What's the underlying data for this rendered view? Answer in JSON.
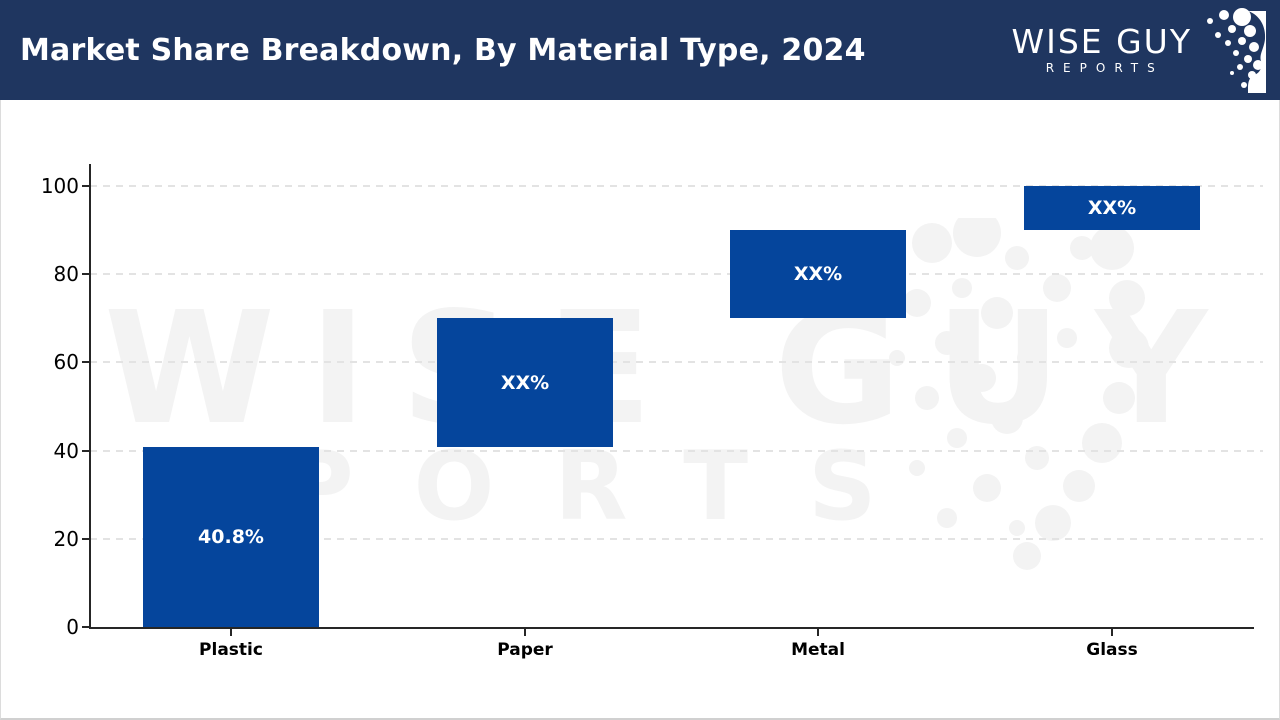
{
  "header": {
    "title": "Market Share Breakdown, By Material Type, 2024",
    "logo": {
      "line1": "WISE GUY",
      "line2": "REPORTS"
    }
  },
  "watermark": {
    "line1": "WISE GUY",
    "line2": "PORTS"
  },
  "chart_data": {
    "type": "bar",
    "subtype": "waterfall",
    "title": "Market Share Breakdown, By Material Type, 2024",
    "xlabel": "",
    "ylabel": "",
    "categories": [
      "Plastic",
      "Paper",
      "Metal",
      "Glass"
    ],
    "segments": [
      {
        "category": "Plastic",
        "start": 0,
        "end": 40.8,
        "label": "40.8%"
      },
      {
        "category": "Paper",
        "start": 40.8,
        "end": 70,
        "label": "XX%"
      },
      {
        "category": "Metal",
        "start": 70,
        "end": 90,
        "label": "XX%"
      },
      {
        "category": "Glass",
        "start": 90,
        "end": 100,
        "label": "XX%"
      }
    ],
    "yticks": [
      0,
      20,
      40,
      60,
      80,
      100
    ],
    "ylim": [
      0,
      105
    ],
    "grid": "horizontal-dashed",
    "legend": "none",
    "bar_color": "#05459C",
    "label_color": "#ffffff"
  },
  "colors": {
    "header_bg": "#1f3660",
    "bar": "#05459C",
    "grid": "#e3e3e3",
    "axis": "#262626",
    "watermark": "#f3f3f3",
    "title_text": "#ffffff"
  }
}
